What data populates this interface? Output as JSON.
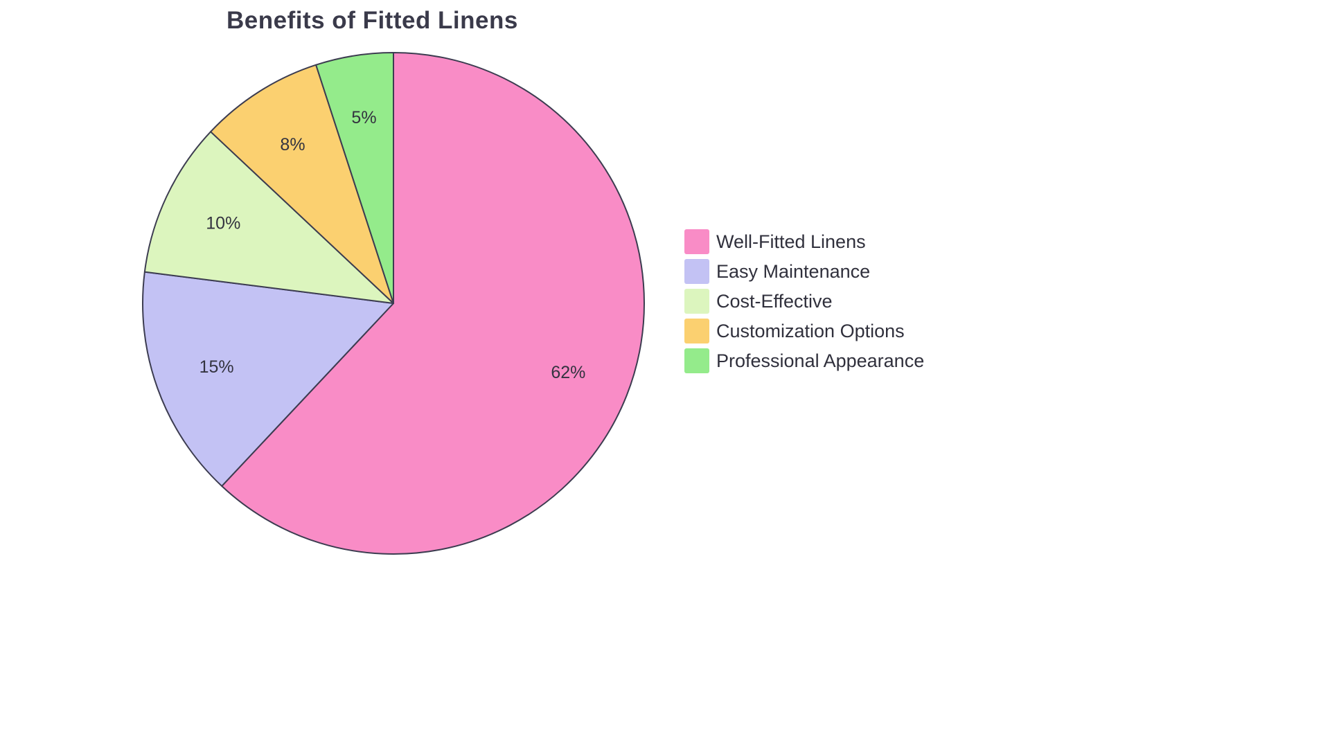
{
  "chart_data": {
    "type": "pie",
    "title": "Benefits of Fitted Linens",
    "categories": [
      "Well-Fitted Linens",
      "Easy Maintenance",
      "Cost-Effective",
      "Customization Options",
      "Professional Appearance"
    ],
    "values": [
      62,
      15,
      10,
      8,
      5
    ],
    "slice_labels": [
      "62%",
      "15%",
      "10%",
      "8%",
      "5%"
    ],
    "colors": [
      "#F98CC6",
      "#C3C2F4",
      "#DCF5BE",
      "#FBD070",
      "#94EB8B"
    ],
    "stroke_color": "#3C3C50",
    "label_color": "#33333F",
    "start_angle_deg": 0,
    "direction": "clockwise",
    "legend_position": "right",
    "grid": false
  }
}
